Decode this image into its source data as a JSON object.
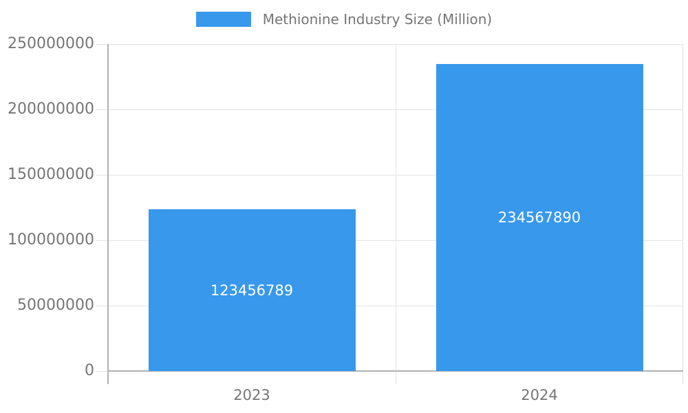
{
  "chart_data": {
    "type": "bar",
    "title": "",
    "legend_label": "Methionine Industry Size (Million)",
    "legend_position": "top",
    "categories": [
      "2023",
      "2024"
    ],
    "values": [
      123456789,
      234567890
    ],
    "bar_labels": [
      "123456789",
      "234567890"
    ],
    "xlabel": "",
    "ylabel": "",
    "ylim": [
      0,
      250000000
    ],
    "ytick_step": 50000000,
    "ytick_labels": [
      "0",
      "50000000",
      "100000000",
      "150000000",
      "200000000",
      "250000000"
    ],
    "grid": "on",
    "colors": {
      "bar": "#3898ec",
      "bar_label_text": "#ffffff",
      "axis_text": "#757575",
      "axis_line": "#b0b0b0",
      "grid_line": "#e3e3e3",
      "plot_border": "#e0e0e0",
      "background": "#ffffff"
    }
  }
}
